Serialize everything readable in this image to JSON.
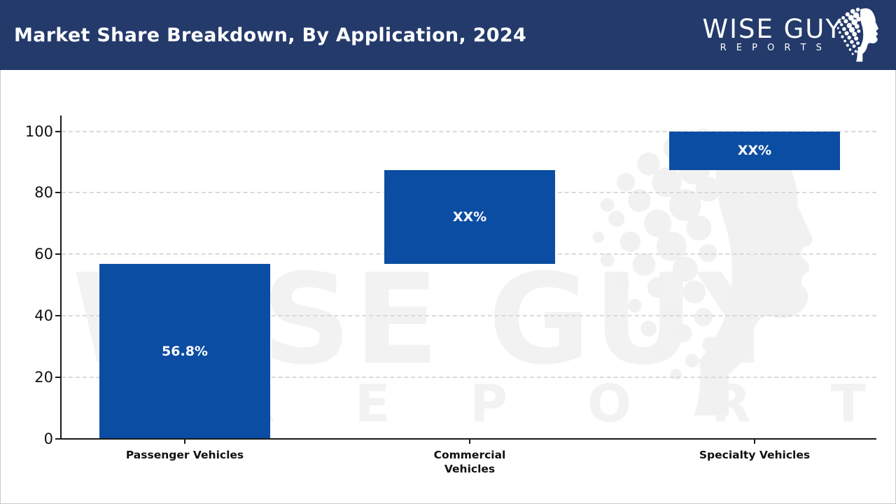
{
  "header": {
    "title": "Market Share Breakdown, By Application, 2024",
    "bg_color": "#233a6b",
    "logo": {
      "name": "Wise Guy Reports",
      "line1": "WISE GUY",
      "line2": "R E P O R T S"
    }
  },
  "watermark": {
    "line1": "WISE GUY",
    "line2": "R E P O R T S"
  },
  "chart_data": {
    "type": "bar",
    "subtype": "waterfall-floating-bars",
    "title": "Market Share Breakdown, By Application, 2024",
    "xlabel": "",
    "ylabel": "",
    "categories": [
      "Passenger Vehicles",
      "Commercial\nVehicles",
      "Specialty Vehicles"
    ],
    "segments": [
      {
        "category": "Passenger Vehicles",
        "start": 0,
        "end": 56.8,
        "label": "56.8%"
      },
      {
        "category": "Commercial Vehicles",
        "start": 56.8,
        "end": 87.3,
        "label": "XX%"
      },
      {
        "category": "Specialty Vehicles",
        "start": 87.3,
        "end": 100,
        "label": "XX%"
      }
    ],
    "ylim": [
      0,
      100
    ],
    "yticks": [
      0,
      20,
      40,
      60,
      80,
      100
    ],
    "grid": "horizontal-dashed",
    "legend_position": "none",
    "bar_color": "#0b4da2",
    "bar_label_color": "#ffffff",
    "axis_color": "#1a1a1a",
    "gridline_color": "#d9d9d9"
  }
}
